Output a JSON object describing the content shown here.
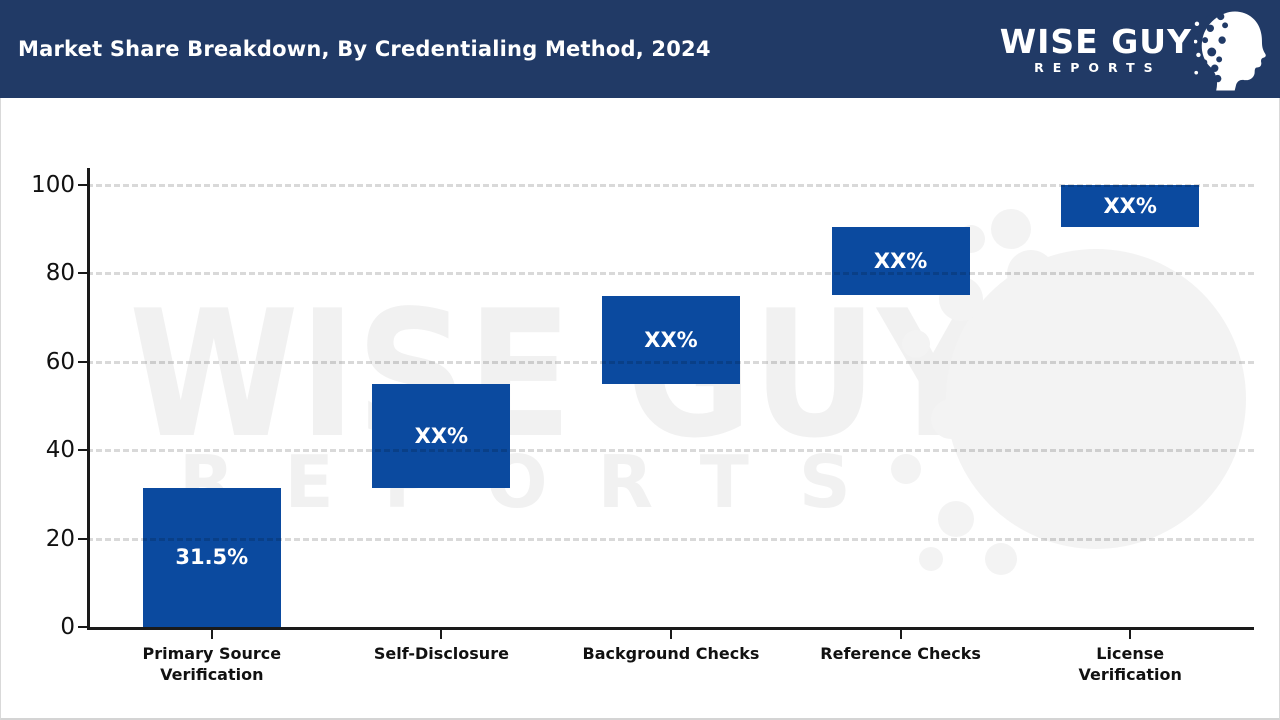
{
  "header": {
    "title": "Market Share Breakdown, By Credentialing Method, 2024",
    "bg_color": "#213a66",
    "title_color": "#ffffff",
    "logo": {
      "primary": "WISE GUY",
      "secondary": "REPORTS"
    }
  },
  "watermark": {
    "primary": "WISE GUY",
    "secondary": "REPORTS"
  },
  "chart_data": {
    "type": "bar",
    "subtype": "floating-waterfall",
    "title": "Market Share Breakdown, By Credentialing Method, 2024",
    "categories": [
      "Primary Source\nVerification",
      "Self-Disclosure",
      "Background Checks",
      "Reference Checks",
      "License\nVerification"
    ],
    "series": [
      {
        "name": "Primary Source Verification",
        "start": 0,
        "end": 31.5,
        "label": "31.5%"
      },
      {
        "name": "Self-Disclosure",
        "start": 31.5,
        "end": 55,
        "label": "XX%"
      },
      {
        "name": "Background Checks",
        "start": 55,
        "end": 75,
        "label": "XX%"
      },
      {
        "name": "Reference Checks",
        "start": 75,
        "end": 90.5,
        "label": "XX%"
      },
      {
        "name": "License Verification",
        "start": 90.5,
        "end": 100,
        "label": "XX%"
      }
    ],
    "xlabel": "",
    "ylabel": "",
    "ylim": [
      0,
      104
    ],
    "yticks": [
      0,
      20,
      40,
      60,
      80,
      100
    ],
    "grid": true,
    "grid_style": "dashed-horizontal",
    "legend": false,
    "bar_color": "#0b4a9f",
    "bar_label_color": "#ffffff"
  }
}
